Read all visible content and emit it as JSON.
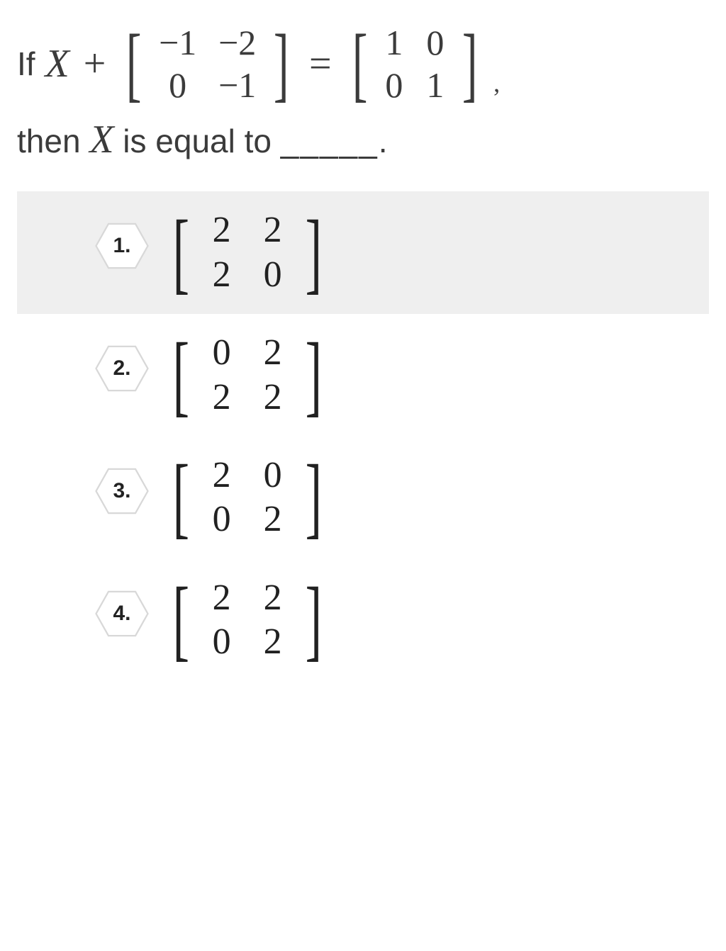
{
  "stem": {
    "prefix": "If",
    "var": "X",
    "plus": "+",
    "equals": "=",
    "matrixA": {
      "r1c1": "−1",
      "r1c2": "−2",
      "r2c1": "0",
      "r2c2": "−1"
    },
    "matrixB": {
      "r1c1": "1",
      "r1c2": "0",
      "r2c1": "0",
      "r2c2": "1"
    },
    "trailing": ",",
    "line2_pre": "then ",
    "line2_var": "X",
    "line2_post": " is equal to ",
    "blank": "_____",
    "line2_period": "."
  },
  "options": [
    {
      "num": "1.",
      "selected": true,
      "m": {
        "r1c1": "2",
        "r1c2": "2",
        "r2c1": "2",
        "r2c2": "0"
      }
    },
    {
      "num": "2.",
      "selected": false,
      "m": {
        "r1c1": "0",
        "r1c2": "2",
        "r2c1": "2",
        "r2c2": "2"
      }
    },
    {
      "num": "3.",
      "selected": false,
      "m": {
        "r1c1": "2",
        "r1c2": "0",
        "r2c1": "0",
        "r2c2": "2"
      }
    },
    {
      "num": "4.",
      "selected": false,
      "m": {
        "r1c1": "2",
        "r1c2": "2",
        "r2c1": "0",
        "r2c2": "2"
      }
    }
  ],
  "style": {
    "text_color": "#3b3b3b",
    "selected_bg": "#efefef",
    "hex_stroke": "#d8d8d8",
    "hex_fill": "#ffffff",
    "body_bg": "#ffffff",
    "stem_fontsize": 46,
    "matrix_cell_fontsize": 50,
    "option_matrix_cell_fontsize": 52,
    "hex_num_fontsize": 30,
    "font_serif": "Times New Roman",
    "font_sans": "Arial"
  }
}
